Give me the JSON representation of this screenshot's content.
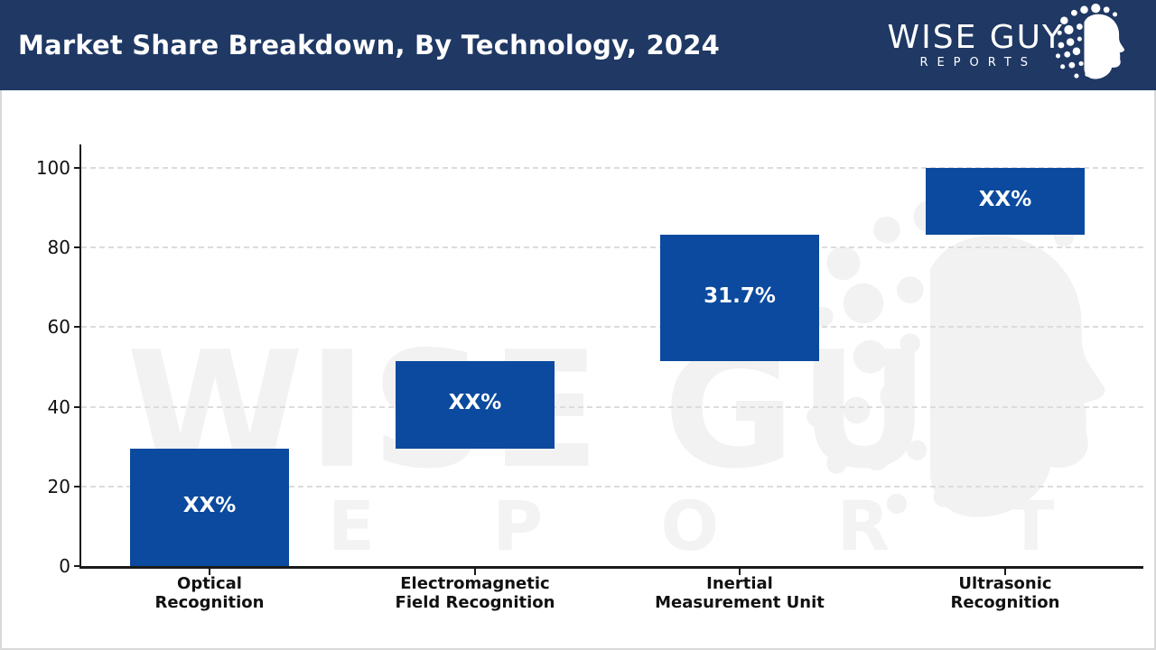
{
  "header": {
    "title": "Market Share Breakdown, By Technology, 2024",
    "bg_color": "#1f3864",
    "logo": {
      "line1": "WISE GUY",
      "line2": "REPORTS"
    }
  },
  "watermark": {
    "line1": "WISE GU",
    "line2": "R E P O R T S"
  },
  "chart_data": {
    "type": "bar",
    "subtype": "waterfall",
    "title": "Market Share Breakdown, By Technology, 2024",
    "categories": [
      "Optical Recognition",
      "Electromagnetic Field Recognition",
      "Inertial Measurement Unit",
      "Ultrasonic Recognition"
    ],
    "category_lines": [
      [
        "Optical",
        "Recognition"
      ],
      [
        "Electromagnetic",
        "Field Recognition"
      ],
      [
        "Inertial",
        "Measurement Unit"
      ],
      [
        "Ultrasonic",
        "Recognition"
      ]
    ],
    "segments": [
      {
        "category": "Optical Recognition",
        "start": 0,
        "end": 29.5,
        "height": 29.5,
        "data_label": "XX%"
      },
      {
        "category": "Electromagnetic Field Recognition",
        "start": 29.5,
        "end": 51.5,
        "height": 22.0,
        "data_label": "XX%"
      },
      {
        "category": "Inertial Measurement Unit",
        "start": 51.5,
        "end": 83.2,
        "height": 31.7,
        "data_label": "31.7%"
      },
      {
        "category": "Ultrasonic Recognition",
        "start": 83.2,
        "end": 100.0,
        "height": 16.8,
        "data_label": "XX%"
      }
    ],
    "xlabel": "",
    "ylabel": "",
    "ylim": [
      0,
      100
    ],
    "yticks": [
      0,
      20,
      40,
      60,
      80,
      100
    ],
    "grid": {
      "horizontal": true,
      "style": "dashed",
      "color": "#dcdcdc"
    },
    "legend": "none",
    "bar_color": "#0b4a9e",
    "data_label_color": "#ffffff",
    "axis_color": "#1a1a1a"
  }
}
